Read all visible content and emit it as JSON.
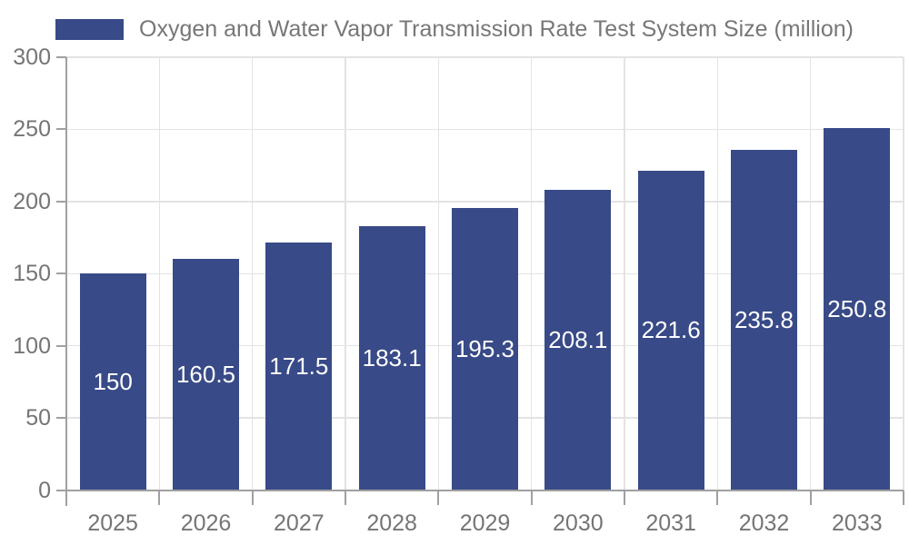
{
  "chart_data": {
    "type": "bar",
    "title": "Oxygen and Water Vapor Transmission Rate Test System Size (million)",
    "legend": {
      "label": "Oxygen and Water Vapor Transmission Rate Test System Size (million)",
      "position": "top-center"
    },
    "categories": [
      "2025",
      "2026",
      "2027",
      "2028",
      "2029",
      "2030",
      "2031",
      "2032",
      "2033"
    ],
    "series": [
      {
        "name": "Oxygen and Water Vapor Transmission Rate Test System Size (million)",
        "values": [
          150,
          160.5,
          171.5,
          183.1,
          195.3,
          208.1,
          221.6,
          235.8,
          250.8
        ]
      }
    ],
    "value_labels": [
      "150",
      "160.5",
      "171.5",
      "183.1",
      "195.3",
      "208.1",
      "221.6",
      "235.8",
      "250.8"
    ],
    "xlabel": "",
    "ylabel": "",
    "ylim": [
      0,
      300
    ],
    "y_ticks": [
      "0",
      "50",
      "100",
      "150",
      "200",
      "250",
      "300"
    ],
    "y_tick_values": [
      0,
      50,
      100,
      150,
      200,
      250,
      300
    ],
    "grid": true,
    "colors": {
      "bar": "#384A87",
      "axis_text": "#757575",
      "legend_text": "#777777",
      "value_text": "#FFFFFF",
      "grid_line": "#E3E3E3",
      "axis_line": "#A0A0A0",
      "background": "#FFFFFF"
    }
  }
}
